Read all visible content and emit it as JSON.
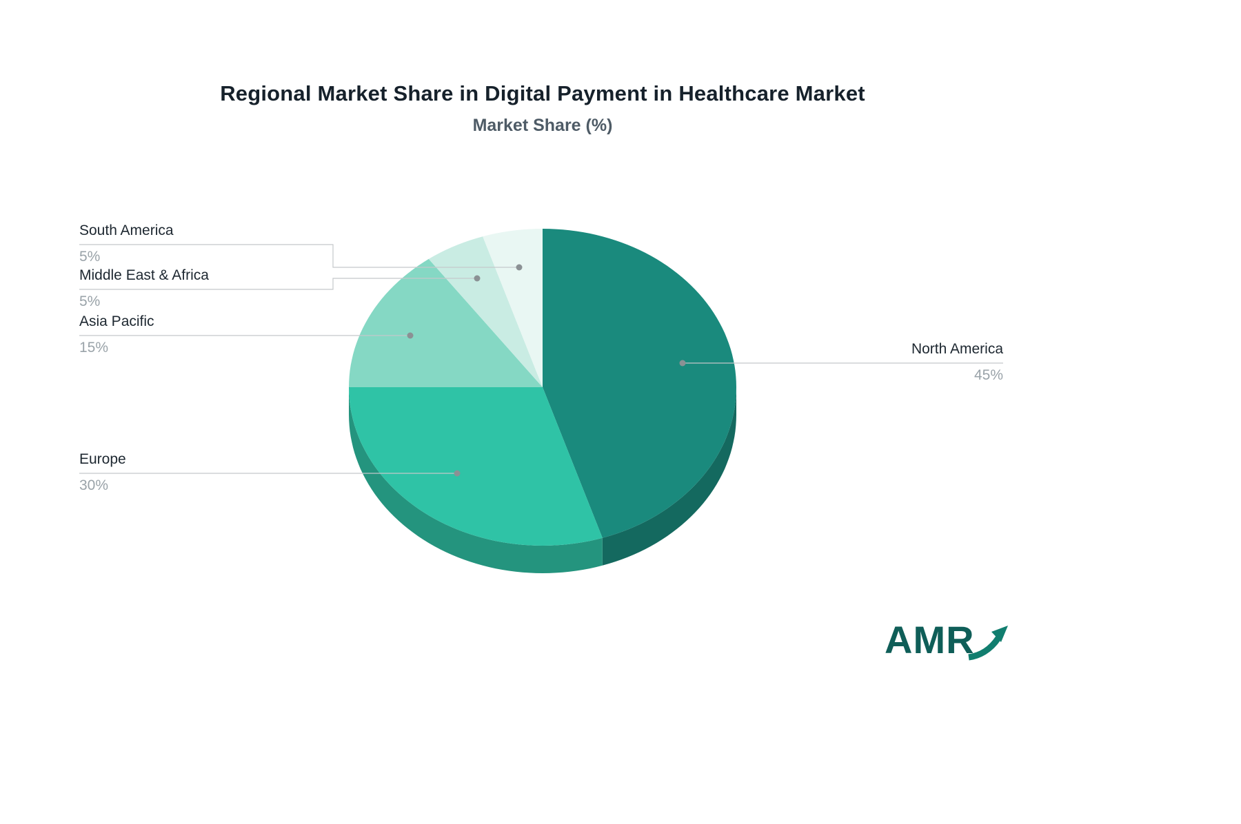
{
  "header": {
    "title": "Regional Market Share in Digital Payment in Healthcare Market",
    "subtitle": "Market Share (%)"
  },
  "chart_data": {
    "type": "pie",
    "title": "Regional Market Share in Digital Payment in Healthcare Market",
    "subtitle": "Market Share (%)",
    "unit": "percent",
    "effect": "3d",
    "start_angle_deg": 0,
    "direction": "clockwise",
    "slices": [
      {
        "label": "North America",
        "value": 45,
        "pct_text": "45%",
        "color": "#1a8a7d"
      },
      {
        "label": "Europe",
        "value": 30,
        "pct_text": "30%",
        "color": "#2fc3a6"
      },
      {
        "label": "Asia Pacific",
        "value": 15,
        "pct_text": "15%",
        "color": "#85d8c4"
      },
      {
        "label": "Middle East & Africa",
        "value": 5,
        "pct_text": "5%",
        "color": "#c9ece3"
      },
      {
        "label": "South America",
        "value": 5,
        "pct_text": "5%",
        "color": "#e9f7f3"
      }
    ],
    "legend_position": "callout-labels",
    "label_name_color": "#1d2730",
    "label_value_color": "#9aa3a9",
    "leader_line_color": "#c4c8ca",
    "dot_color": "#8b9194"
  },
  "logo": {
    "text": "AMR",
    "color": "#0f5e58",
    "arrow_icon": "trend-up-arrow"
  }
}
